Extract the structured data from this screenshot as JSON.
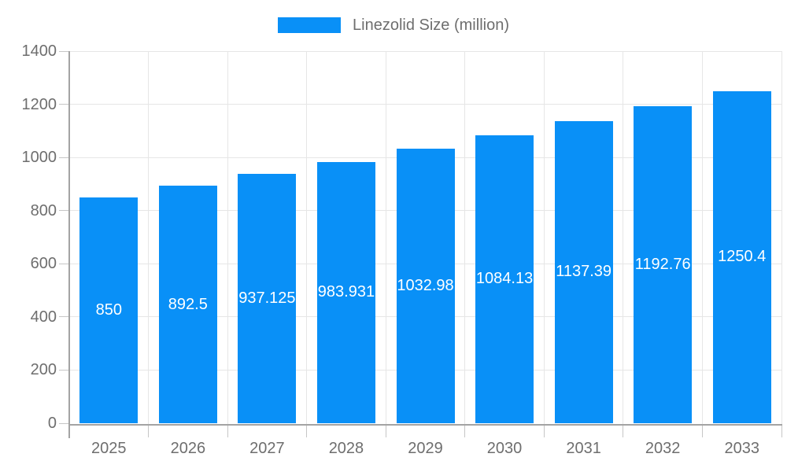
{
  "chart_data": {
    "type": "bar",
    "title": "",
    "xlabel": "",
    "ylabel": "",
    "legend": {
      "position": "top",
      "label": "Linezolid Size (million)"
    },
    "categories": [
      "2025",
      "2026",
      "2027",
      "2028",
      "2029",
      "2030",
      "2031",
      "2032",
      "2033"
    ],
    "series": [
      {
        "name": "Linezolid Size (million)",
        "values": [
          850,
          892.5,
          937.125,
          983.931,
          1032.98,
          1084.13,
          1137.39,
          1192.76,
          1250.4
        ],
        "value_labels": [
          "850",
          "892.5",
          "937.125",
          "983.931",
          "1032.98",
          "1084.13",
          "1137.39",
          "1192.76",
          "1250.4"
        ],
        "color": "#0990f7"
      }
    ],
    "ylim": [
      0,
      1400
    ],
    "yticks": [
      0,
      200,
      400,
      600,
      800,
      1000,
      1200,
      1400
    ],
    "grid": true,
    "colors": {
      "bar": "#0990f7",
      "axis_text": "#6e6e6e",
      "bar_label_text": "#ffffff",
      "gridline": "#e6e6e6",
      "axis_line": "#a3a3a3",
      "tick": "#c6c6c6",
      "background": "#ffffff"
    }
  }
}
